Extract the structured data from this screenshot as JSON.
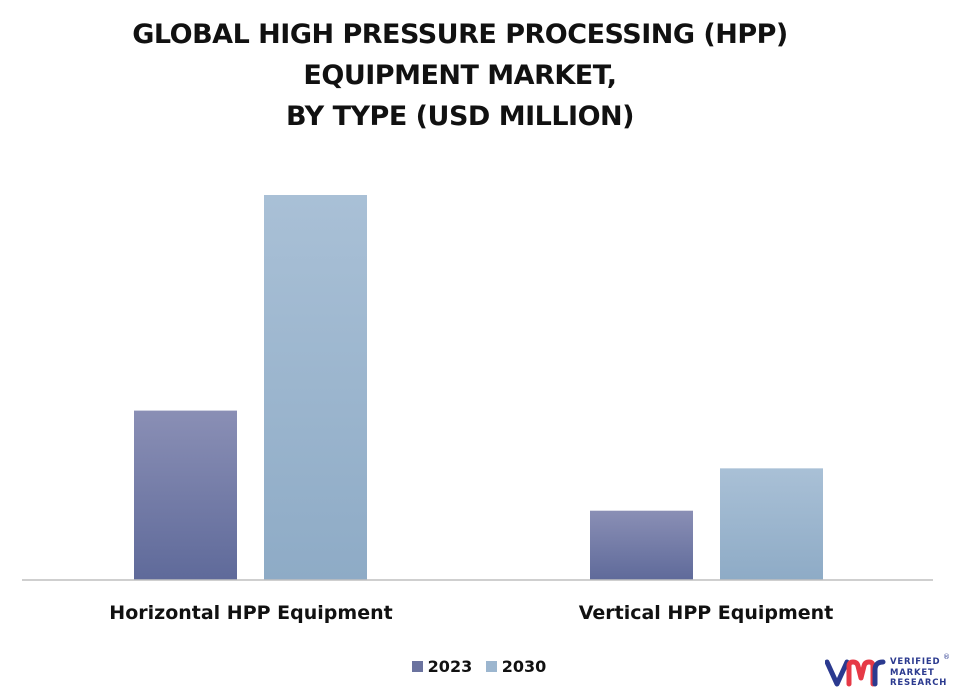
{
  "chart_data": {
    "type": "bar",
    "title_lines": [
      "GLOBAL HIGH PRESSURE PROCESSING (HPP)",
      "EQUIPMENT MARKET,",
      "BY TYPE (USD MILLION)"
    ],
    "categories": [
      "Horizontal HPP Equipment",
      "Vertical HPP Equipment"
    ],
    "series": [
      {
        "name": "2023",
        "values": [
          44,
          18
        ],
        "color_top": "#8a8fb5",
        "color_bottom": "#5f6a9a"
      },
      {
        "name": "2030",
        "values": [
          100,
          29
        ],
        "color_top": "#a9c0d6",
        "color_bottom": "#8eabc6"
      }
    ],
    "ylim": [
      0,
      100
    ],
    "grid": false,
    "axis_values_shown": false,
    "legend_position": "bottom-center"
  },
  "logo": {
    "lines": [
      "VERIFIED",
      "MARKET",
      "RESEARCH"
    ],
    "registered": "®",
    "color": "#2b3a8f"
  }
}
